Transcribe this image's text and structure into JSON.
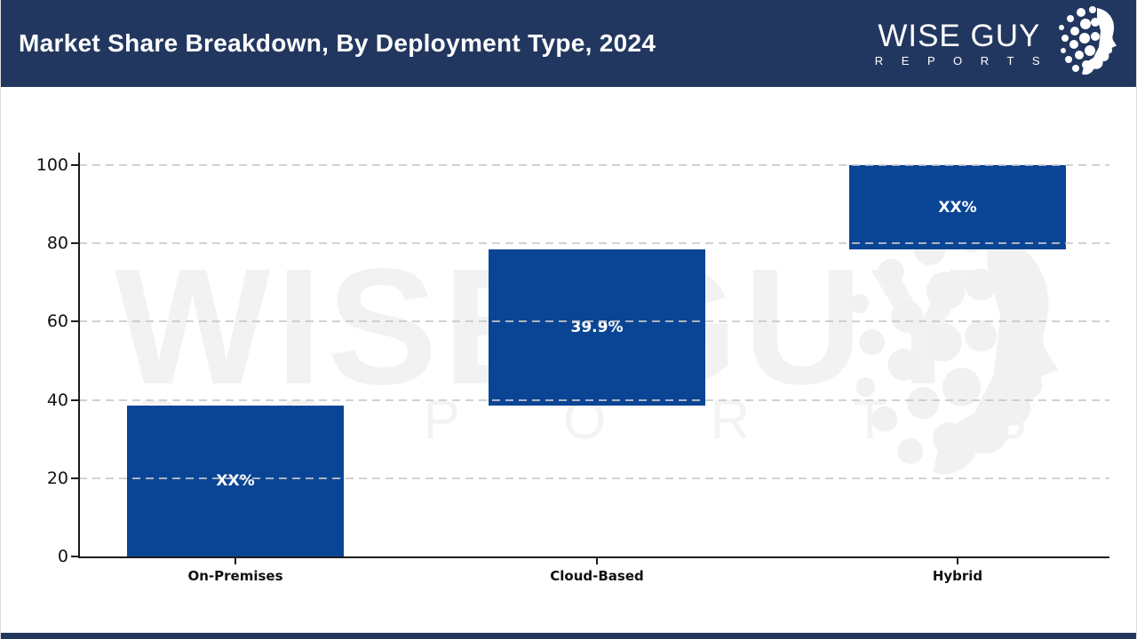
{
  "header": {
    "title": "Market Share Breakdown, By Deployment Type, 2024",
    "logo": {
      "line1": "WISE GUY",
      "line2": "R E P O R T S"
    }
  },
  "watermark": {
    "big_text": "WISE GUY",
    "reports_text": "R E P O R T S"
  },
  "chart_data": {
    "type": "bar",
    "subtype": "floating-segment-waterfall",
    "title": "Market Share Breakdown, By Deployment Type, 2024",
    "categories": [
      "On-Premises",
      "Cloud-Based",
      "Hybrid"
    ],
    "bars": [
      {
        "category": "On-Premises",
        "start": 0,
        "end": 38.5,
        "value": 38.5,
        "label": "XX%"
      },
      {
        "category": "Cloud-Based",
        "start": 38.5,
        "end": 78.4,
        "value": 39.9,
        "label": "39.9%"
      },
      {
        "category": "Hybrid",
        "start": 78.4,
        "end": 100,
        "value": 21.6,
        "label": "XX%"
      }
    ],
    "xlabel": "",
    "ylabel": "",
    "ylim": [
      0,
      103.5
    ],
    "yticks": [
      0,
      20,
      40,
      60,
      80,
      100
    ],
    "grid": "horizontal-dashed",
    "legend": "none",
    "bar_color": "#0a4595",
    "bar_label_color": "#ffffff"
  },
  "colors": {
    "header_bg": "#22375f",
    "footer_bg": "#22375f",
    "bar": "#0a4595",
    "grid": "#c9c9c9",
    "axis": "#1c1c1c",
    "watermark": "#f2f2f2"
  }
}
